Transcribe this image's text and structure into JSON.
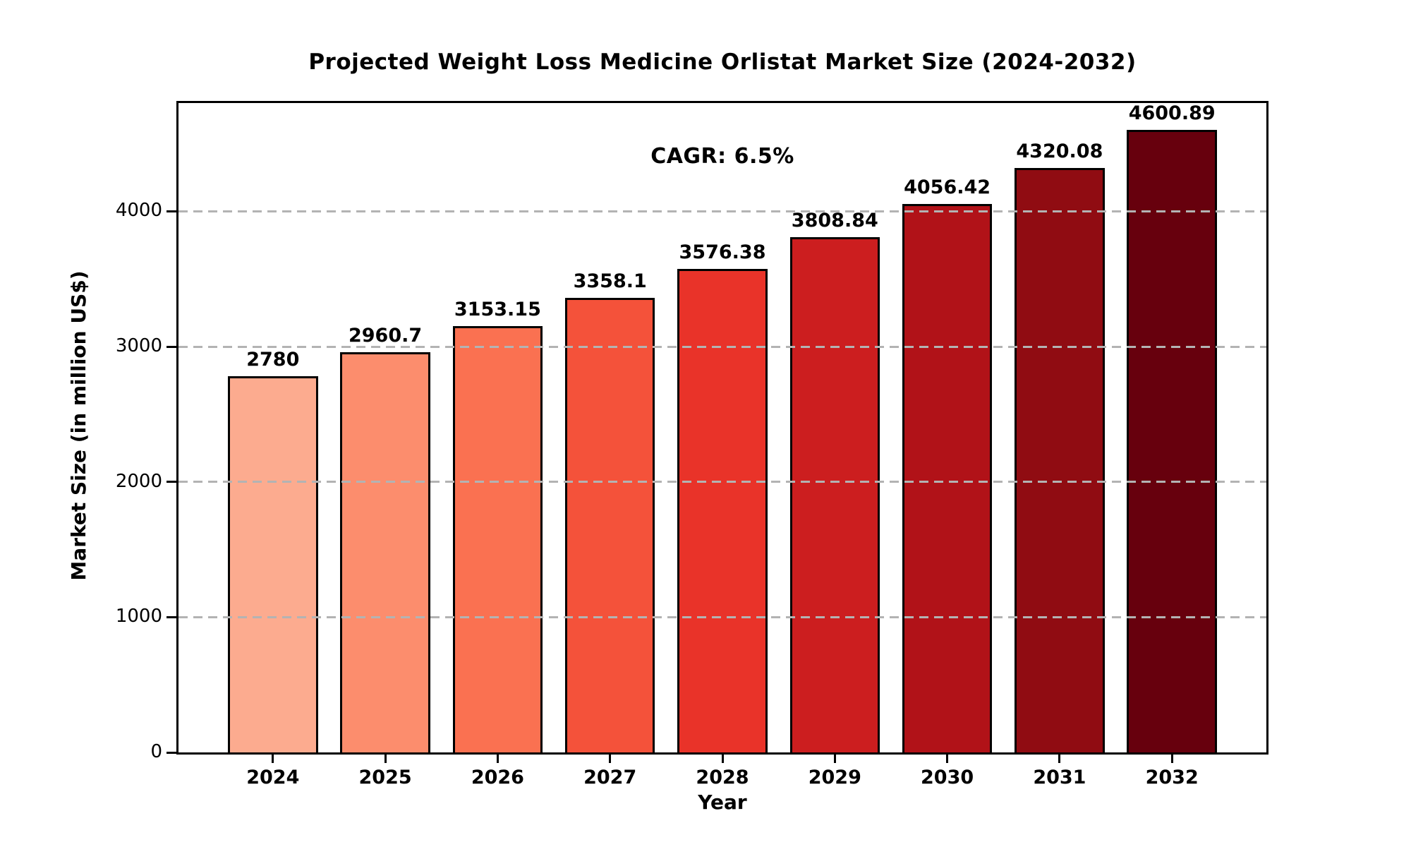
{
  "chart_data": {
    "type": "bar",
    "title": "Projected Weight Loss Medicine Orlistat Market Size (2024-2032)",
    "annotation": "CAGR: 6.5%",
    "xlabel": "Year",
    "ylabel": "Market Size (in million US$)",
    "categories": [
      "2024",
      "2025",
      "2026",
      "2027",
      "2028",
      "2029",
      "2030",
      "2031",
      "2032"
    ],
    "values": [
      2780,
      2960.7,
      3153.15,
      3358.1,
      3576.38,
      3808.84,
      4056.42,
      4320.08,
      4600.89
    ],
    "value_labels": [
      "2780",
      "2960.7",
      "3153.15",
      "3358.1",
      "3576.38",
      "3808.84",
      "4056.42",
      "4320.08",
      "4600.89"
    ],
    "bar_colors": [
      "#FCAB8F",
      "#FC8D6D",
      "#FA7151",
      "#F4523A",
      "#E93329",
      "#CC1E1F",
      "#B11218",
      "#900C12",
      "#67000D"
    ],
    "bar_edge_color": "#000000",
    "ylim": [
      0,
      4800
    ],
    "yticks": [
      0,
      1000,
      2000,
      3000,
      4000
    ],
    "grid": "horizontal-dashed-on-top",
    "grid_color": "#b3b3b3",
    "legend": "none",
    "background_color": "#ffffff"
  }
}
